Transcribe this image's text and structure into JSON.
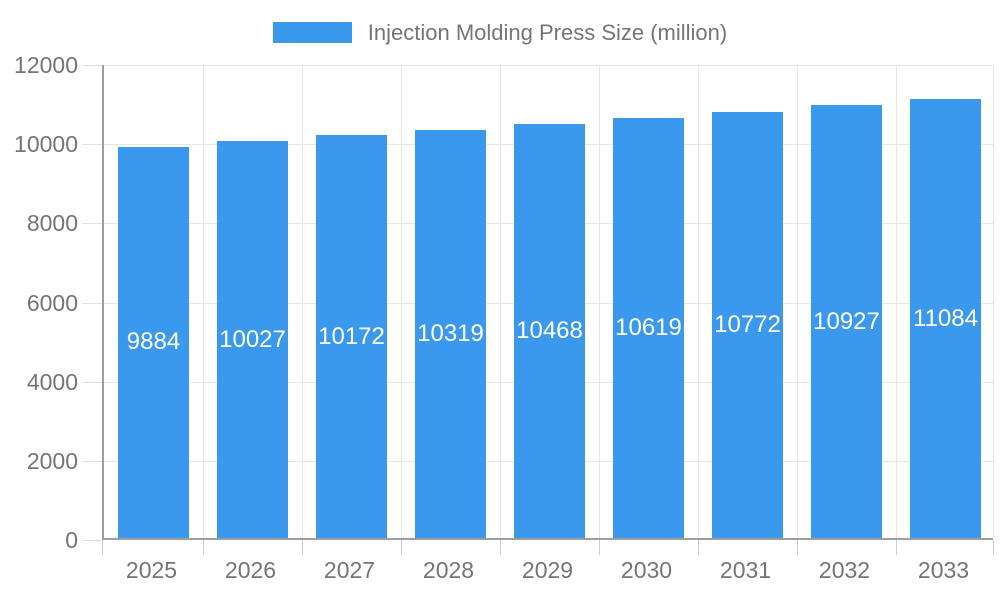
{
  "legend": {
    "label": "Injection Molding Press Size (million)"
  },
  "chart_data": {
    "type": "bar",
    "title": "Injection Molding Press Size (million)",
    "categories": [
      "2025",
      "2026",
      "2027",
      "2028",
      "2029",
      "2030",
      "2031",
      "2032",
      "2033"
    ],
    "values": [
      9884,
      10027,
      10172,
      10319,
      10468,
      10619,
      10772,
      10927,
      11084
    ],
    "xlabel": "",
    "ylabel": "",
    "ylim": [
      0,
      12000
    ],
    "yticks": [
      0,
      2000,
      4000,
      6000,
      8000,
      10000,
      12000
    ],
    "grid": true,
    "legend_position": "top",
    "bar_labels_inside": true
  },
  "colors": {
    "bar": "#3A99EC",
    "bar_label": "#FFFFFF",
    "axis": "#9E9E9E",
    "gridline": "#E6E6E6",
    "tick": "#E0E0E0",
    "text": "#757575",
    "background": "#FFFFFF"
  }
}
